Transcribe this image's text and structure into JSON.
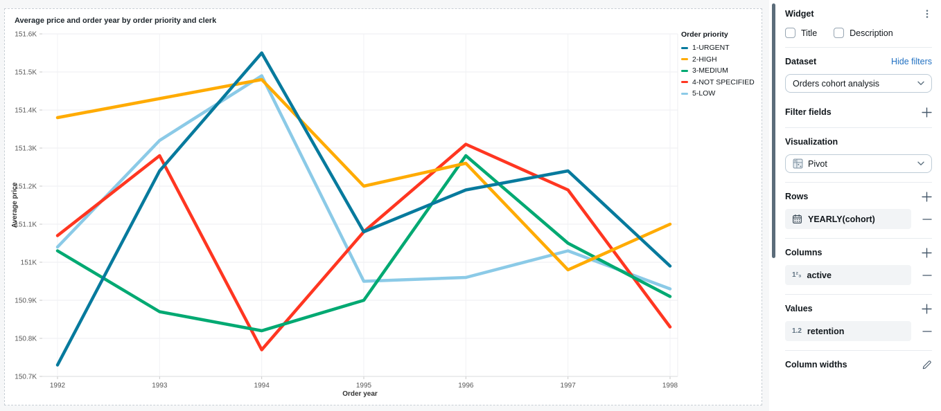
{
  "chart_data": {
    "type": "line",
    "title": "Average price and order year by order priority and clerk",
    "xlabel": "Order year",
    "ylabel": "Average price",
    "x": [
      1992,
      1993,
      1994,
      1995,
      1996,
      1997,
      1998
    ],
    "x_tick_labels": [
      "1992",
      "1993",
      "1994",
      "1995",
      "1996",
      "1997",
      "1998"
    ],
    "y_unit": "K",
    "ylim": [
      150.7,
      151.6
    ],
    "y_tick_labels": [
      "151.6K",
      "151.5K",
      "151.4K",
      "151.3K",
      "151.2K",
      "151.1K",
      "151K",
      "150.9K",
      "150.8K",
      "150.7K"
    ],
    "grid": true,
    "legend_title": "Order priority",
    "legend_position": "right",
    "series": [
      {
        "name": "1-URGENT",
        "color": "#077A9D",
        "values": [
          150.73,
          151.24,
          151.55,
          151.08,
          151.19,
          151.24,
          150.99
        ]
      },
      {
        "name": "2-HIGH",
        "color": "#FFAB00",
        "values": [
          151.38,
          151.43,
          151.48,
          151.2,
          151.26,
          150.98,
          151.1
        ]
      },
      {
        "name": "3-MEDIUM",
        "color": "#00A972",
        "values": [
          151.03,
          150.87,
          150.82,
          150.9,
          151.28,
          151.05,
          150.91
        ]
      },
      {
        "name": "4-NOT SPECIFIED",
        "color": "#FF3621",
        "values": [
          151.07,
          151.28,
          150.77,
          151.08,
          151.31,
          151.19,
          150.83
        ]
      },
      {
        "name": "5-LOW",
        "color": "#8BCAE7",
        "values": [
          151.04,
          151.32,
          151.49,
          150.95,
          150.96,
          151.03,
          150.93
        ]
      }
    ]
  },
  "panel": {
    "widget": {
      "title": "Widget",
      "checkboxes": [
        {
          "label": "Title",
          "checked": false
        },
        {
          "label": "Description",
          "checked": false
        }
      ]
    },
    "dataset": {
      "label": "Dataset",
      "action": "Hide filters",
      "selected": "Orders cohort analysis"
    },
    "filter_fields": {
      "label": "Filter fields"
    },
    "visualization": {
      "label": "Visualization",
      "selected": "Pivot"
    },
    "rows": {
      "label": "Rows",
      "fields": [
        {
          "name": "YEARLY(cohort)",
          "type_icon": "calendar-icon"
        }
      ]
    },
    "columns": {
      "label": "Columns",
      "fields": [
        {
          "name": "active",
          "type_icon": "number-icon",
          "icon_text": "1²₃"
        }
      ]
    },
    "values": {
      "label": "Values",
      "fields": [
        {
          "name": "retention",
          "type_icon": "decimal-icon",
          "icon_text": "1.2"
        }
      ]
    },
    "column_widths": {
      "label": "Column widths"
    }
  },
  "colors": {
    "link": "#2070C2",
    "icon": "#46586A",
    "chip_bg": "#F2F4F6",
    "divider": "#E7EBEF",
    "scrollbar": "#5B6C7A",
    "grid_line": "#ECEEF0",
    "axis_text": "#575757"
  }
}
